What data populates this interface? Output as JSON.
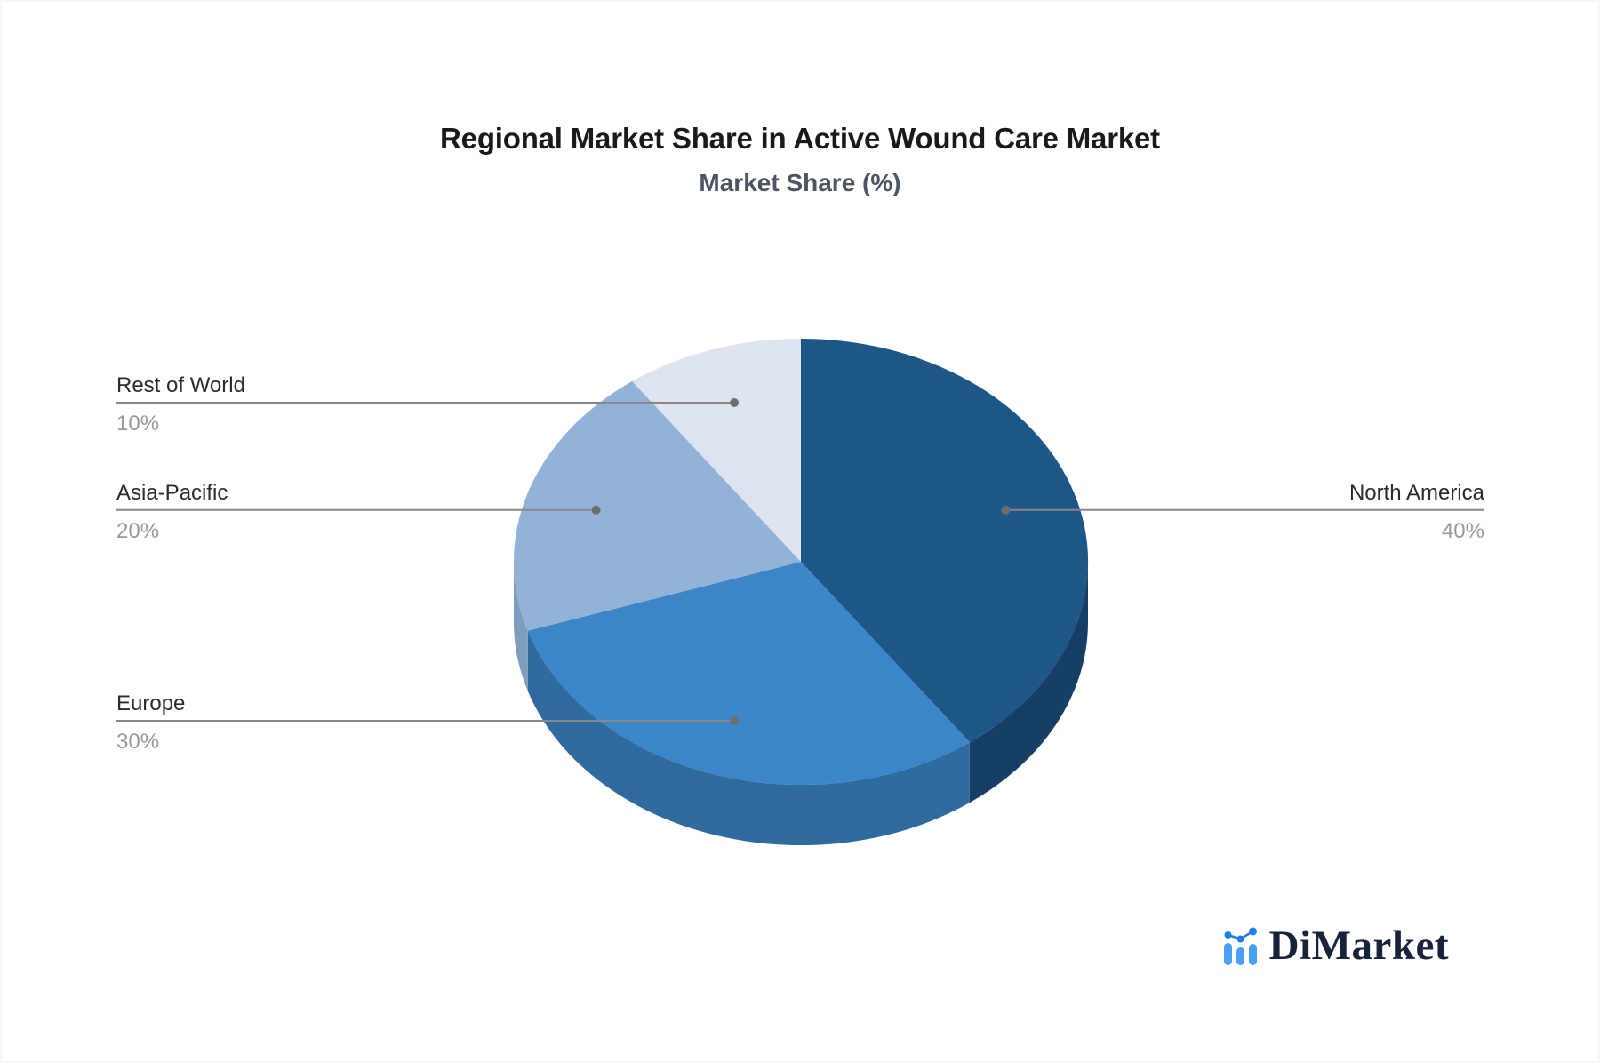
{
  "page": {
    "background": "#ffffff"
  },
  "chart_data": {
    "type": "pie",
    "effect": "3d",
    "title": "Regional Market Share in Active Wound Care Market",
    "subtitle": "Market Share (%)",
    "categories": [
      "North America",
      "Europe",
      "Asia-Pacific",
      "Rest of World"
    ],
    "values": [
      40,
      30,
      20,
      10
    ],
    "value_labels": [
      "40%",
      "30%",
      "20%",
      "10%"
    ],
    "unit": "%",
    "legend": "none",
    "label_style": "leader-lines-with-dots",
    "style": {
      "colors": [
        "#1E5787",
        "#3B85C9",
        "#92B3D8",
        "#DDE4EF"
      ],
      "side_colors": [
        "#173F66",
        "#2F6B9E",
        "#7E9DBD",
        "#AEBDD1"
      ],
      "leader_line_color": "#888888",
      "leader_dot_color": "#6E6E6E",
      "name_color": "#2B2B2B",
      "value_color": "#9A9A9A",
      "title_color": "#17191C",
      "subtitle_color": "#4B5563"
    }
  },
  "branding": {
    "logo_text": "DiMarket",
    "logo_icon": "bar-chart-trend-icon",
    "logo_text_color": "#16233B",
    "icon_bar_color": "#47A0F4",
    "icon_accent_color": "#1F7FE8"
  }
}
